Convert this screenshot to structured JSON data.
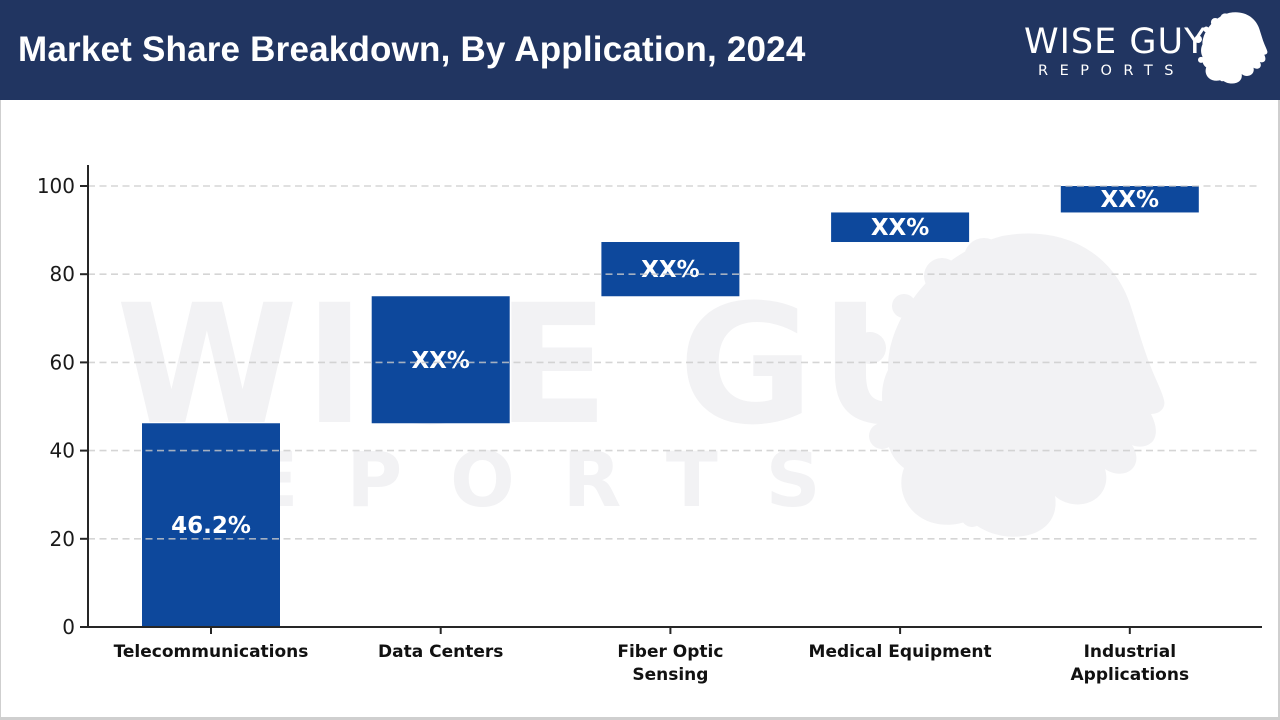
{
  "header": {
    "title": "Market Share Breakdown, By Application, 2024",
    "bg_color": "#213561"
  },
  "logo": {
    "line1": "WISE GUY",
    "line2": "REPORTS"
  },
  "watermark": {
    "line1": "WISE GUY",
    "line2": "REPORTS"
  },
  "chart_data": {
    "type": "bar",
    "variant": "waterfall-cumulative",
    "title": "Market Share Breakdown, By Application, 2024",
    "categories": [
      "Telecommunications",
      "Data Centers",
      "Fiber Optic Sensing",
      "Medical Equipment",
      "Industrial Applications"
    ],
    "category_label_lines": [
      [
        "Telecommunications"
      ],
      [
        "Data Centers"
      ],
      [
        "Fiber Optic",
        "Sensing"
      ],
      [
        "Medical Equipment"
      ],
      [
        "Industrial",
        "Applications"
      ]
    ],
    "bars": [
      {
        "category": "Telecommunications",
        "start": 0,
        "end": 46.2,
        "value": 46.2,
        "label": "46.2%"
      },
      {
        "category": "Data Centers",
        "start": 46.2,
        "end": 75.0,
        "value": 28.8,
        "label": "XX%"
      },
      {
        "category": "Fiber Optic Sensing",
        "start": 75.0,
        "end": 87.3,
        "value": 12.3,
        "label": "XX%"
      },
      {
        "category": "Medical Equipment",
        "start": 87.3,
        "end": 94.0,
        "value": 6.7,
        "label": "XX%"
      },
      {
        "category": "Industrial Applications",
        "start": 94.0,
        "end": 100.0,
        "value": 6.0,
        "label": "XX%"
      }
    ],
    "yticks": [
      0,
      20,
      40,
      60,
      80,
      100
    ],
    "ylim": [
      0,
      105
    ],
    "xlabel": "",
    "ylabel": "",
    "grid": true,
    "gridline_style": "dashed",
    "legend": "none",
    "bar_color": "#0d489c",
    "bar_label_color": "#ffffff",
    "axis_color": "#262626",
    "gridline_color": "#cbcbcb"
  }
}
